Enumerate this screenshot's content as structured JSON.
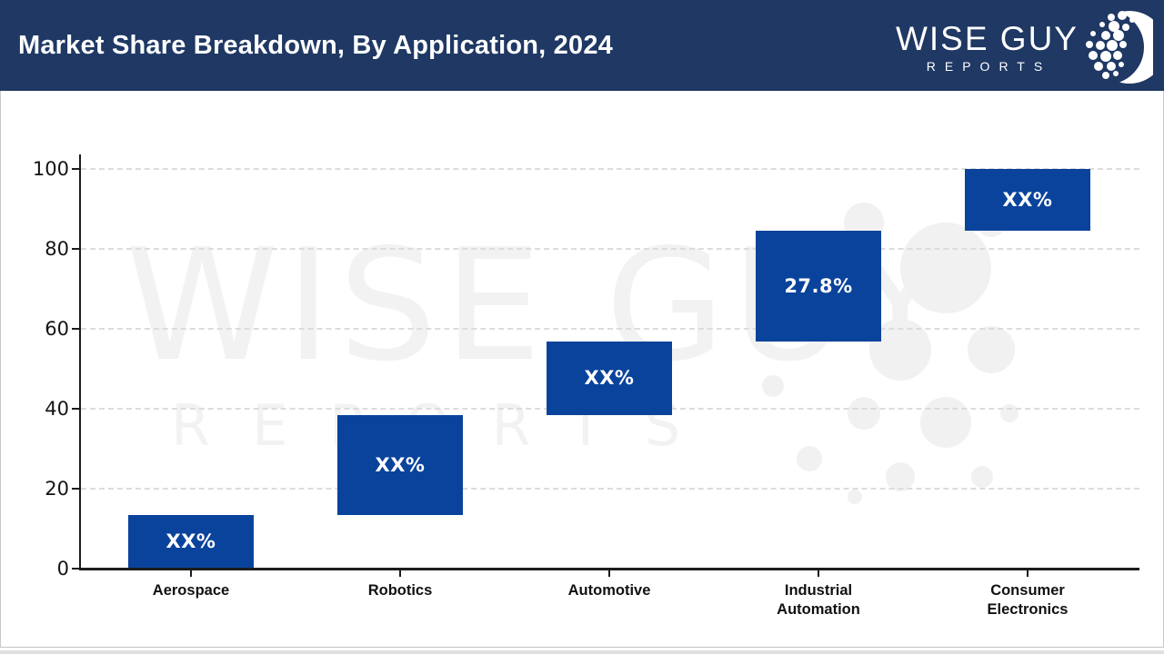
{
  "header": {
    "title": "Market Share Breakdown, By Application, 2024",
    "bg_color": "#1f3864",
    "logo": {
      "line1": "WISE GUY",
      "line2": "REPORTS"
    }
  },
  "watermark": {
    "line1": "WISE GUY",
    "line2": "REPORTS"
  },
  "chart_data": {
    "type": "bar",
    "variant": "floating-waterfall",
    "title": "Market Share Breakdown, By Application, 2024",
    "xlabel": "",
    "ylabel": "",
    "yticks": [
      0,
      20,
      40,
      60,
      80,
      100
    ],
    "ylim": [
      0,
      104
    ],
    "grid": "horizontal-dashed",
    "legend": "none",
    "bar_color": "#0a439b",
    "value_label_color": "#ffffff",
    "categories": [
      {
        "label": "Aerospace",
        "lines": [
          "Aerospace"
        ]
      },
      {
        "label": "Robotics",
        "lines": [
          "Robotics"
        ]
      },
      {
        "label": "Automotive",
        "lines": [
          "Automotive"
        ]
      },
      {
        "label": "Industrial Automation",
        "lines": [
          "Industrial",
          "Automation"
        ]
      },
      {
        "label": "Consumer Electronics",
        "lines": [
          "Consumer",
          "Electronics"
        ]
      }
    ],
    "segments": [
      {
        "category": "Aerospace",
        "start": 0,
        "end": 13.5,
        "value_label": "XX%"
      },
      {
        "category": "Robotics",
        "start": 13.5,
        "end": 38.5,
        "value_label": "XX%"
      },
      {
        "category": "Automotive",
        "start": 38.5,
        "end": 56.8,
        "value_label": "XX%"
      },
      {
        "category": "Industrial Automation",
        "start": 56.8,
        "end": 84.6,
        "value_label": "27.8%"
      },
      {
        "category": "Consumer Electronics",
        "start": 84.6,
        "end": 100,
        "value_label": "XX%"
      }
    ]
  }
}
